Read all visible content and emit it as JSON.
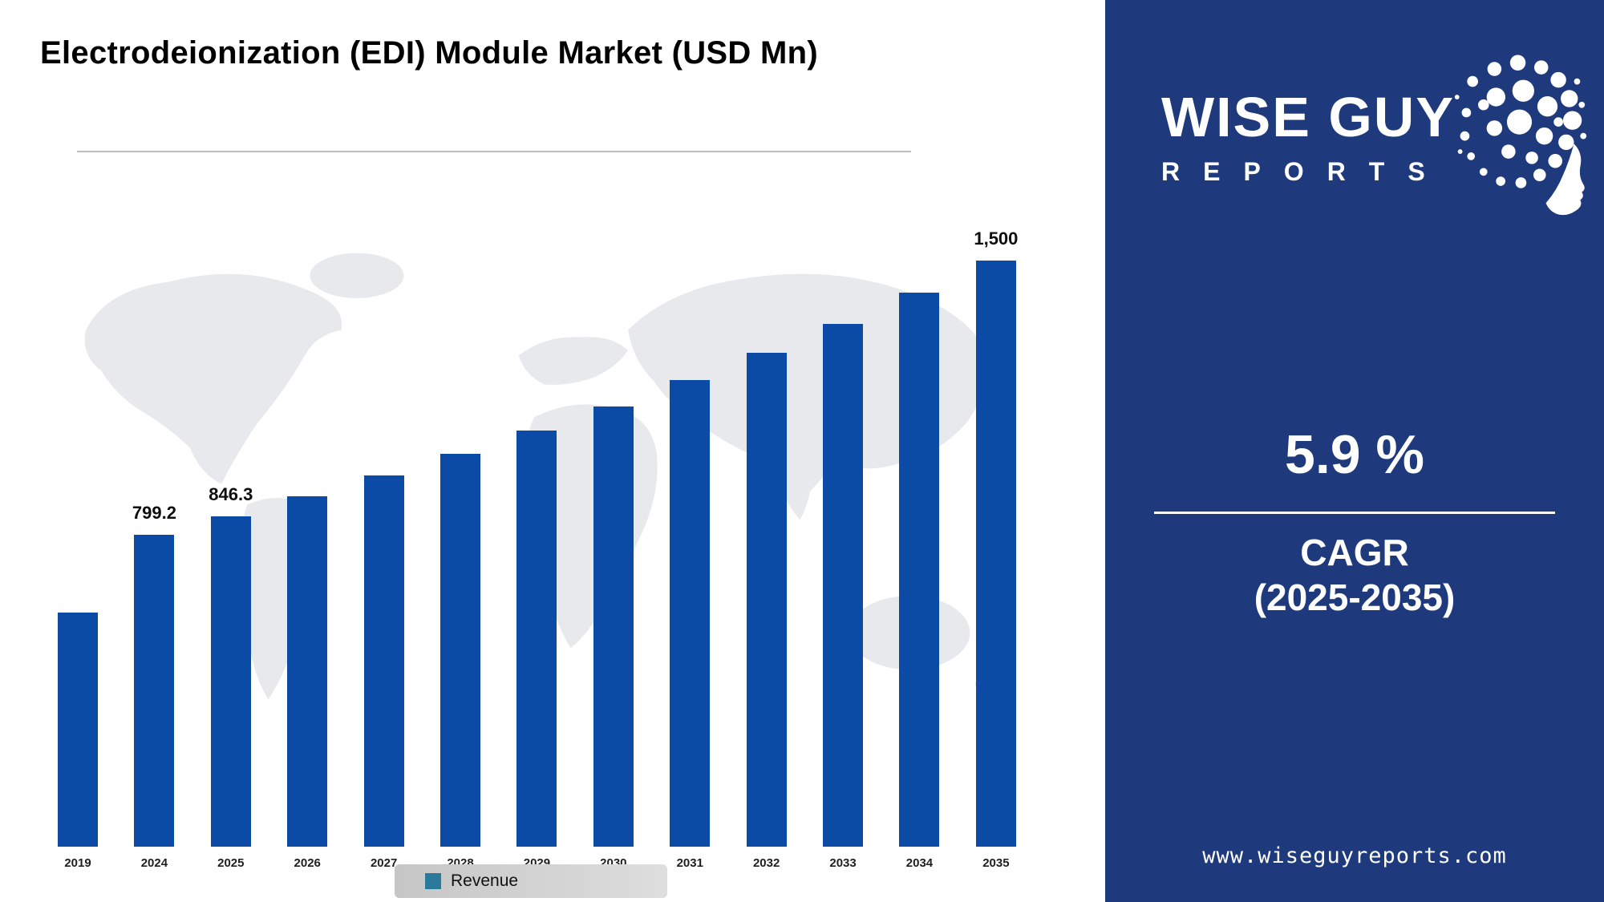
{
  "header": {
    "title": "Electrodeionization (EDI) Module Market (USD Mn)"
  },
  "chart_data": {
    "type": "bar",
    "title": "Electrodeionization (EDI) Module Market (USD Mn)",
    "unit": "USD Mn",
    "categories": [
      "2019",
      "2024",
      "2025",
      "2026",
      "2027",
      "2028",
      "2029",
      "2030",
      "2031",
      "2032",
      "2033",
      "2034",
      "2035"
    ],
    "values": [
      600,
      799.2,
      846.3,
      896.2,
      949.1,
      1005.1,
      1064.4,
      1127.2,
      1193.7,
      1264.1,
      1338.7,
      1417.7,
      1500
    ],
    "point_labels": [
      "",
      "799.2",
      "846.3",
      "",
      "",
      "",
      "",
      "",
      "",
      "",
      "",
      "",
      "1,500"
    ],
    "ylim": [
      0,
      1500
    ],
    "grid": false,
    "bar_color": "#0b4aa5",
    "legend_position": "bottom",
    "legend": [
      {
        "label": "Revenue",
        "color": "#2a7a9b"
      }
    ]
  },
  "sidebar": {
    "background": "#1e3a7d",
    "logo": {
      "line1": "WISE GUY",
      "line2": "REPORTS"
    },
    "cagr": {
      "value": "5.9 %",
      "label": "CAGR",
      "period": "(2025-2035)"
    },
    "website": "www.wiseguyreports.com"
  }
}
